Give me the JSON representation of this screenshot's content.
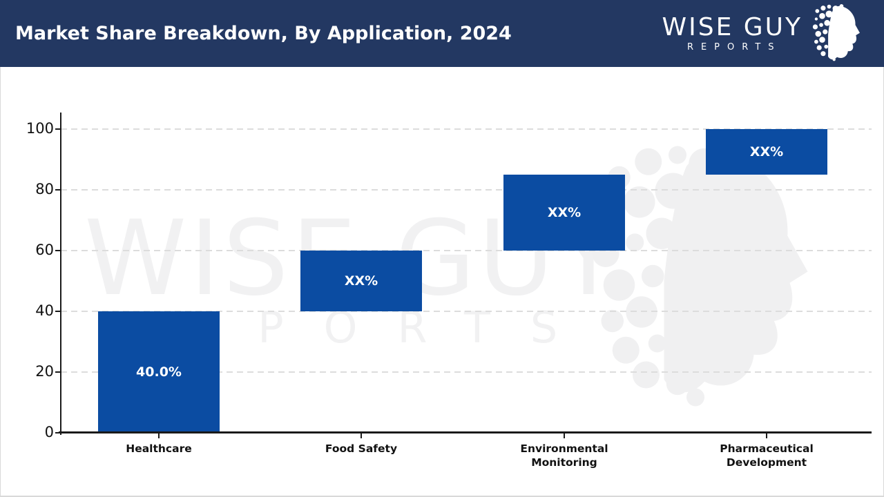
{
  "header": {
    "title": "Market Share Breakdown, By Application, 2024",
    "bg_color": "#233862",
    "logo": {
      "name": "WISE GUY",
      "sub": "REPORTS"
    }
  },
  "watermark": {
    "name": "WISE GUY",
    "sub": "REPORTS"
  },
  "chart_data": {
    "type": "bar",
    "subtype": "waterfall",
    "title": "Market Share Breakdown, By Application, 2024",
    "xlabel": "",
    "ylabel": "",
    "ylim": [
      0,
      100
    ],
    "yticks": [
      0,
      20,
      40,
      60,
      80,
      100
    ],
    "grid": "dashed-horizontal",
    "bar_color": "#0b4ca2",
    "bar_label_color": "#ffffff",
    "categories": [
      "Healthcare",
      "Food Safety",
      "Environmental Monitoring",
      "Pharmaceutical Development"
    ],
    "series": [
      {
        "category": "Healthcare",
        "start": 0,
        "end": 40,
        "value": 40,
        "label": "40.0%"
      },
      {
        "category": "Food Safety",
        "start": 40,
        "end": 60,
        "value": 20,
        "label": "XX%"
      },
      {
        "category": "Environmental Monitoring",
        "start": 60,
        "end": 85,
        "value": 25,
        "label": "XX%"
      },
      {
        "category": "Pharmaceutical Development",
        "start": 85,
        "end": 100,
        "value": 15,
        "label": "XX%"
      }
    ]
  }
}
